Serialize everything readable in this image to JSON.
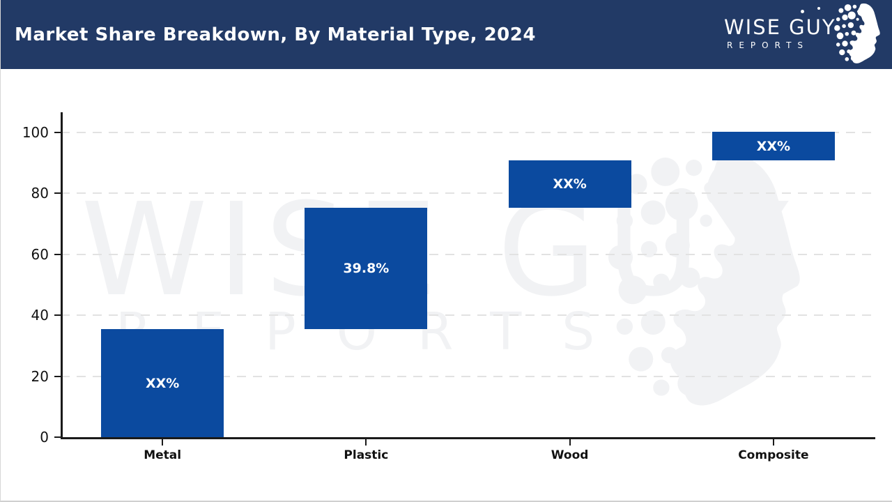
{
  "header": {
    "title": "Market Share Breakdown, By Material Type, 2024",
    "logo": {
      "wordmark": "WISE GUY",
      "sub": "REPORTS"
    }
  },
  "watermark": {
    "wordmark": "WISE GUY",
    "sub": "REPORTS"
  },
  "chart_data": {
    "type": "bar",
    "variant": "waterfall",
    "title": "Market Share Breakdown, By Material Type, 2024",
    "categories": [
      "Metal",
      "Plastic",
      "Wood",
      "Composite"
    ],
    "segments": [
      {
        "category": "Metal",
        "start": 0,
        "end": 35.4,
        "label": "XX%"
      },
      {
        "category": "Plastic",
        "start": 35.4,
        "end": 75.2,
        "label": "39.8%"
      },
      {
        "category": "Wood",
        "start": 75.2,
        "end": 90.7,
        "label": "XX%"
      },
      {
        "category": "Composite",
        "start": 90.7,
        "end": 100.2,
        "label": "XX%"
      }
    ],
    "xlabel": "",
    "ylabel": "",
    "ylim": [
      0,
      107
    ],
    "yticks": [
      0,
      20,
      40,
      60,
      80,
      100
    ],
    "grid": "horizontal-dashed",
    "legend": "none",
    "colors": {
      "bar": "#0b4a9f",
      "bar_label": "#ffffff",
      "grid": "#e2e2e2",
      "axis": "#1a1a1a",
      "tick_label": "#111111",
      "category_label": "#111111",
      "header_bg": "#223a66",
      "header_text": "#ffffff",
      "watermark": "#f1f2f4"
    }
  }
}
